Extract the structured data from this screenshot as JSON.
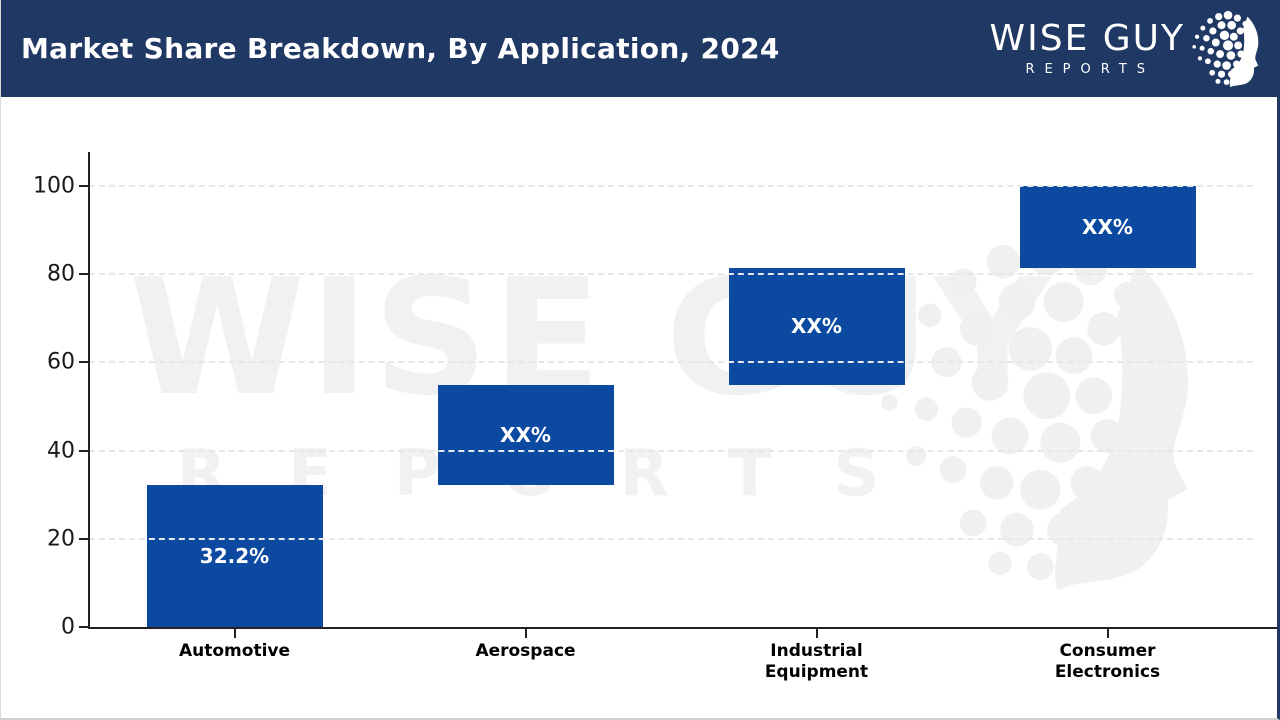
{
  "page": {
    "background": "#ffffff",
    "border_right_color": "#1f3864",
    "border_bottom_color": "#cfcfcf"
  },
  "header": {
    "background": "#1f3864",
    "title": "Market Share Breakdown, By Application, 2024",
    "logo": {
      "line1": "WISE GUY",
      "line2": "REPORTS",
      "face_icon": "dotted-head-profile"
    }
  },
  "watermark": {
    "line1": "WISE GUY",
    "line2": "REPORTS",
    "face_icon": "dotted-head-profile",
    "color": "#f1f1f1"
  },
  "chart_data": {
    "type": "bar",
    "subtype": "floating-waterfall",
    "title": "Market Share Breakdown, By Application, 2024",
    "categories": [
      "Automotive",
      "Aerospace",
      "Industrial Equipment",
      "Consumer Electronics"
    ],
    "category_display": [
      "Automotive",
      "Aerospace",
      "Industrial\nEquipment",
      "Consumer\nElectronics"
    ],
    "segments": [
      {
        "category": "Automotive",
        "start": 0,
        "end": 32.2,
        "label": "32.2%"
      },
      {
        "category": "Aerospace",
        "start": 32.2,
        "end": 54.9,
        "label": "XX%"
      },
      {
        "category": "Industrial Equipment",
        "start": 54.9,
        "end": 81.4,
        "label": "XX%"
      },
      {
        "category": "Consumer Electronics",
        "start": 81.4,
        "end": 100,
        "label": "XX%"
      }
    ],
    "y_ticks": [
      0,
      20,
      40,
      60,
      80,
      100
    ],
    "ylim": [
      0,
      100
    ],
    "xlabel": "",
    "ylabel": "",
    "grid": "horizontal-dashed",
    "legend": "none",
    "bar_color": "#0b4aa0",
    "bar_label_color": "#ffffff",
    "axis_color": "#222222",
    "gridline_color": "#e7e7e7"
  }
}
